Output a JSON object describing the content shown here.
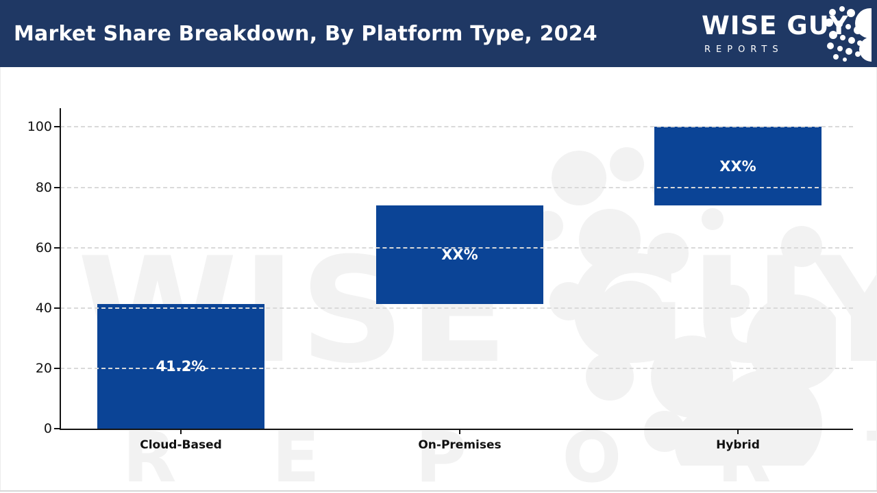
{
  "header": {
    "title": "Market Share Breakdown, By Platform Type, 2024",
    "logo": {
      "primary": "WISE GUY",
      "secondary": "R E P O R T S"
    }
  },
  "watermark": {
    "primary": "WISE GUY",
    "secondary": "R E P O R T S"
  },
  "chart_data": {
    "type": "bar",
    "variant": "waterfall",
    "title": "Market Share Breakdown, By Platform Type, 2024",
    "categories": [
      "Cloud-Based",
      "On-Premises",
      "Hybrid"
    ],
    "segments": [
      {
        "category": "Cloud-Based",
        "start": 0,
        "end": 41.2,
        "label": "41.2%"
      },
      {
        "category": "On-Premises",
        "start": 41.2,
        "end": 74,
        "label": "XX%"
      },
      {
        "category": "Hybrid",
        "start": 74,
        "end": 100,
        "label": "XX%"
      }
    ],
    "yticks": [
      0,
      20,
      40,
      60,
      80,
      100
    ],
    "ylim": [
      0,
      105.5
    ],
    "xlabel": "",
    "ylabel": "",
    "grid": "horizontal-dashed-over-bars",
    "legend": "none",
    "bar_color": "#0b4496",
    "bar_label_color": "#ffffff"
  },
  "colors": {
    "header_bg": "#1f3864",
    "bar": "#0b4496",
    "grid": "#d9d9d9",
    "axis": "#111111",
    "watermark": "#f2f2f2",
    "footer_line": "#d6d6d6"
  }
}
